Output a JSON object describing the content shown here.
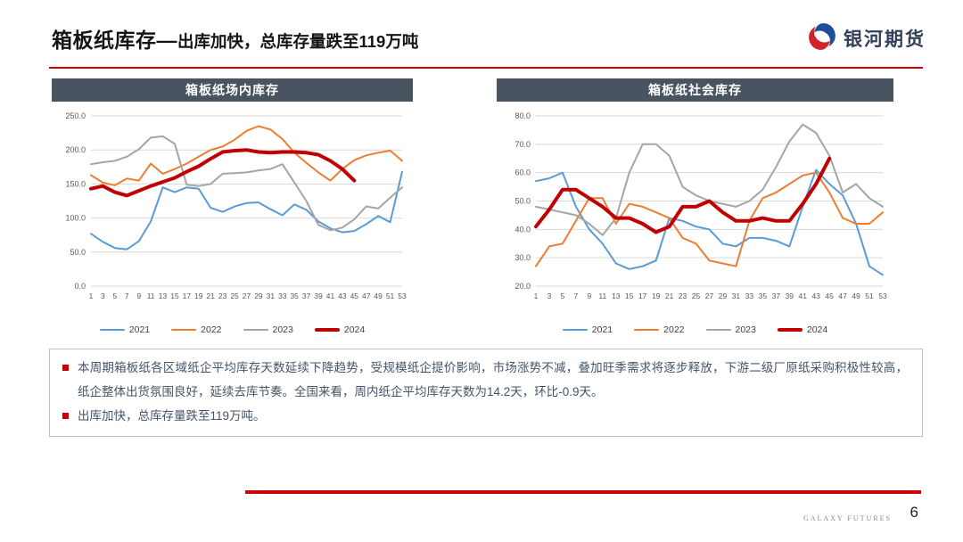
{
  "header": {
    "title_main": "箱板纸库存—",
    "title_sub": "出库加快，总库存量跌至119万吨",
    "logo_text": "银河期货",
    "accent_color": "#CC0000",
    "logo_red": "#D2232A",
    "logo_blue": "#1B4F9C"
  },
  "chart_data": [
    {
      "type": "line",
      "title": "箱板纸场内库存",
      "xlabel": "",
      "ylabel": "",
      "ylim": [
        0,
        250
      ],
      "yticks": [
        "0.0",
        "50.0",
        "100.0",
        "150.0",
        "200.0",
        "250.0"
      ],
      "grid": true,
      "legend_position": "bottom",
      "x_note": "weeks 1-53, points at odd weeks",
      "categories": [
        "1",
        "3",
        "5",
        "7",
        "9",
        "11",
        "13",
        "15",
        "17",
        "19",
        "21",
        "23",
        "25",
        "27",
        "29",
        "31",
        "33",
        "35",
        "37",
        "39",
        "41",
        "43",
        "45",
        "47",
        "49",
        "51",
        "53"
      ],
      "series": [
        {
          "name": "2021",
          "color": "#5B9BD5",
          "width": 2,
          "values": [
            77,
            65,
            56,
            54,
            66,
            95,
            145,
            138,
            145,
            143,
            115,
            109,
            117,
            122,
            123,
            113,
            104,
            120,
            112,
            95,
            85,
            79,
            81,
            91,
            103,
            94,
            168
          ]
        },
        {
          "name": "2022",
          "color": "#ED7D31",
          "width": 2,
          "values": [
            163,
            152,
            148,
            158,
            155,
            180,
            165,
            172,
            180,
            190,
            200,
            205,
            215,
            228,
            235,
            230,
            216,
            196,
            181,
            167,
            155,
            172,
            185,
            192,
            196,
            199,
            184
          ]
        },
        {
          "name": "2023",
          "color": "#A5A5A5",
          "width": 2,
          "values": [
            179,
            182,
            184,
            190,
            201,
            218,
            220,
            209,
            149,
            147,
            150,
            165,
            166,
            167,
            170,
            172,
            179,
            152,
            125,
            90,
            82,
            86,
            98,
            117,
            114,
            130,
            145
          ]
        },
        {
          "name": "2024",
          "color": "#C00000",
          "width": 4,
          "values": [
            143,
            147,
            138,
            133,
            140,
            147,
            153,
            159,
            168,
            176,
            187,
            197,
            199,
            200,
            197,
            196,
            197,
            197,
            196,
            193,
            184,
            172,
            155
          ]
        }
      ]
    },
    {
      "type": "line",
      "title": "箱板纸社会库存",
      "xlabel": "",
      "ylabel": "",
      "ylim": [
        20,
        80
      ],
      "yticks": [
        "20.0",
        "30.0",
        "40.0",
        "50.0",
        "60.0",
        "70.0",
        "80.0"
      ],
      "grid": true,
      "legend_position": "bottom",
      "x_note": "weeks 1-53, points at odd weeks",
      "categories": [
        "1",
        "3",
        "5",
        "7",
        "9",
        "11",
        "13",
        "15",
        "17",
        "19",
        "21",
        "23",
        "25",
        "27",
        "29",
        "31",
        "33",
        "35",
        "37",
        "39",
        "41",
        "43",
        "45",
        "47",
        "49",
        "51",
        "53"
      ],
      "series": [
        {
          "name": "2021",
          "color": "#5B9BD5",
          "width": 2,
          "values": [
            57,
            58,
            60,
            48,
            40,
            35,
            28,
            26,
            27,
            29,
            44,
            43,
            41,
            40,
            35,
            34,
            37,
            37,
            36,
            34,
            48,
            61,
            56,
            52,
            42,
            27,
            24
          ]
        },
        {
          "name": "2022",
          "color": "#ED7D31",
          "width": 2,
          "values": [
            27,
            34,
            35,
            43,
            51,
            51,
            42,
            49,
            48,
            46,
            44,
            37,
            35,
            29,
            28,
            27,
            43,
            51,
            53,
            56,
            59,
            60,
            53,
            44,
            42,
            42,
            46
          ]
        },
        {
          "name": "2023",
          "color": "#A5A5A5",
          "width": 2,
          "values": [
            48,
            47,
            46,
            45,
            42,
            38,
            44,
            60,
            70,
            70,
            66,
            55,
            52,
            50,
            49,
            48,
            50,
            54,
            62,
            71,
            77,
            74,
            66,
            53,
            56,
            51,
            48
          ]
        },
        {
          "name": "2024",
          "color": "#C00000",
          "width": 4,
          "values": [
            41,
            47,
            54,
            54,
            51,
            48,
            44,
            44,
            42,
            39,
            41,
            48,
            48,
            50,
            46,
            43,
            43,
            44,
            43,
            43,
            49,
            56,
            65
          ]
        }
      ]
    }
  ],
  "notes": {
    "items": [
      "本周期箱板纸各区域纸企平均库存天数延续下降趋势，受规模纸企提价影响，市场涨势不减，叠加旺季需求将逐步释放，下游二级厂原纸采购积极性较高，纸企整体出货氛围良好，延续去库节奏。全国来看，周内纸企平均库存天数为14.2天，环比-0.9天。",
      "出库加快，总库存量跌至119万吨。"
    ]
  },
  "footer": {
    "brand": "GALAXY FUTURES",
    "page": "6"
  }
}
